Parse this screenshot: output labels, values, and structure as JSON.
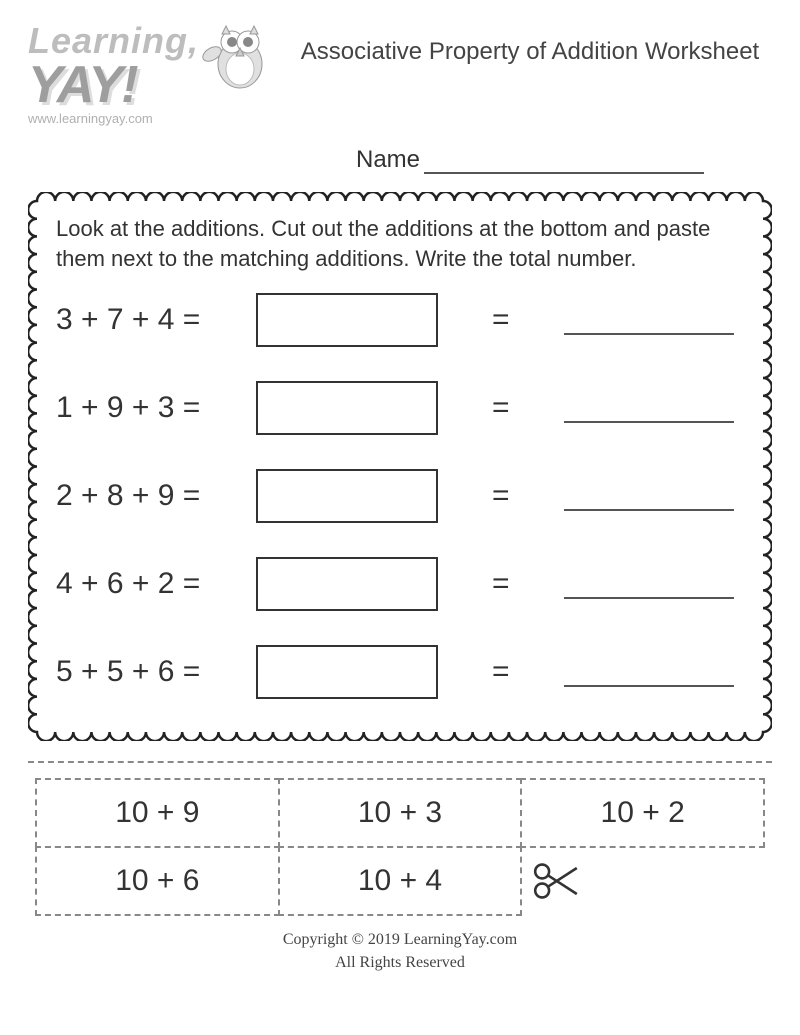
{
  "logo": {
    "line1": "Learning,",
    "line2": "YAY!",
    "url": "www.learningyay.com"
  },
  "title": "Associative Property of Addition Worksheet",
  "name_label": "Name",
  "instructions": "Look at the additions. Cut out the additions at the bottom and paste them next to the matching additions. Write the total number.",
  "problems": [
    {
      "expr": "3 + 7 + 4 ="
    },
    {
      "expr": "1 + 9 + 3 ="
    },
    {
      "expr": "2 + 8 + 9 ="
    },
    {
      "expr": "4 + 6 + 2 ="
    },
    {
      "expr": "5 + 5 + 6 ="
    }
  ],
  "equals_sign": "=",
  "cutouts": [
    "10 + 9",
    "10 + 3",
    "10 + 2",
    "10 + 6",
    "10 + 4"
  ],
  "footer": {
    "line1": "Copyright © 2019 LearningYay.com",
    "line2": "All Rights Reserved"
  },
  "styling": {
    "page_bg": "#ffffff",
    "text_color": "#333333",
    "border_color": "#333333",
    "dashed_color": "#888888",
    "logo_gray": "#9e9e9e",
    "title_fontsize": 24,
    "expr_fontsize": 30,
    "instr_fontsize": 22,
    "cutout_fontsize": 30,
    "paste_box_w": 182,
    "paste_box_h": 54,
    "answer_line_w": 170,
    "scallop_radius": 9
  }
}
